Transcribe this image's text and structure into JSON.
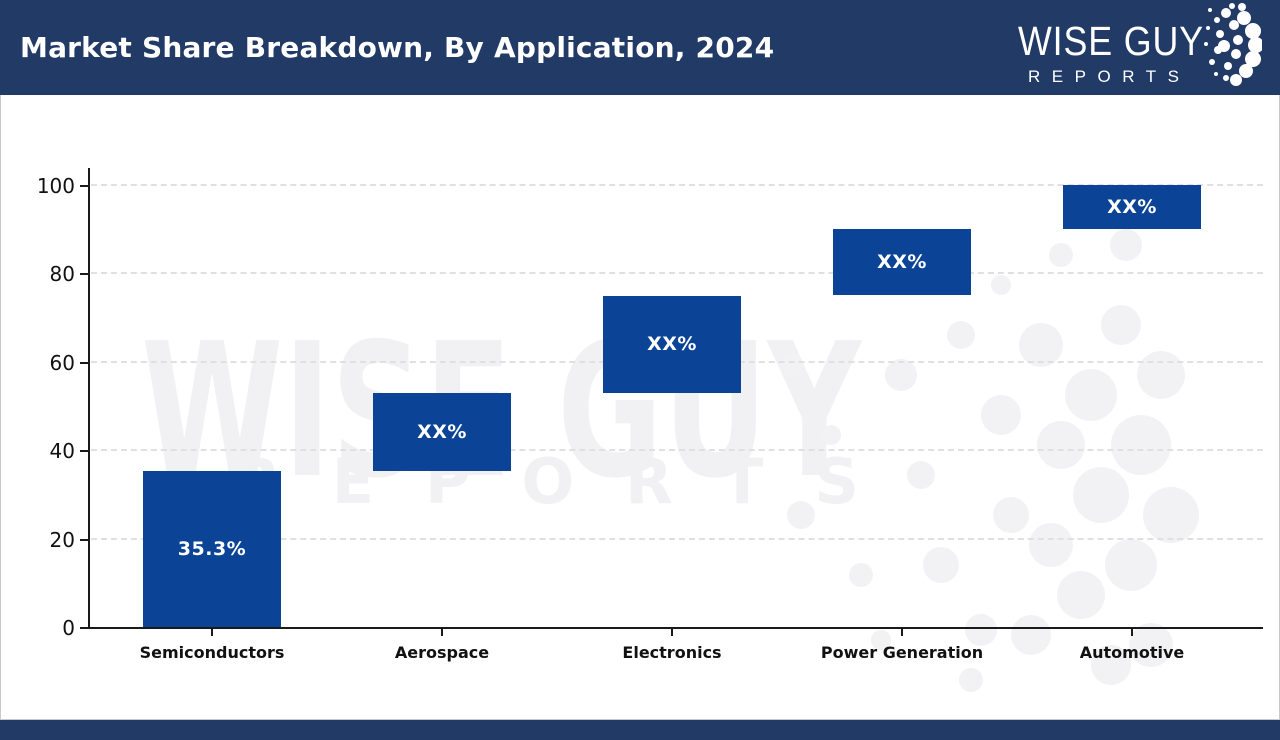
{
  "header": {
    "title": "Market Share Breakdown, By Application, 2024",
    "logo": {
      "line1": "WISE GUY",
      "line2": "REPORTS"
    }
  },
  "watermark": {
    "line1": "WISE GUY",
    "line2": "REPORTS"
  },
  "colors": {
    "header_bg": "#213a66",
    "bar": "#0b4396",
    "grid": "#e0e0e0",
    "axis": "#1a1a1a",
    "watermark": "#f1f1f3",
    "frame": "#c9c9c9",
    "title_text": "#ffffff"
  },
  "chart_data": {
    "type": "bar",
    "subtype": "waterfall-floating-bars",
    "title": "Market Share Breakdown, By Application, 2024",
    "categories": [
      "Semiconductors",
      "Aerospace",
      "Electronics",
      "Power Generation",
      "Automotive"
    ],
    "segments": [
      {
        "category": "Semiconductors",
        "start": 0,
        "end": 35.3,
        "label": "35.3%"
      },
      {
        "category": "Aerospace",
        "start": 35.3,
        "end": 53,
        "label": "XX%"
      },
      {
        "category": "Electronics",
        "start": 53,
        "end": 75,
        "label": "XX%"
      },
      {
        "category": "Power Generation",
        "start": 75,
        "end": 90,
        "label": "XX%"
      },
      {
        "category": "Automotive",
        "start": 90,
        "end": 100,
        "label": "XX%"
      }
    ],
    "y_ticks": [
      0,
      20,
      40,
      60,
      80,
      100
    ],
    "ylim": [
      0,
      100
    ],
    "xlabel": "",
    "ylabel": "",
    "grid": "horizontal-dashed",
    "legend": "none",
    "bar_color": "#0b4396"
  }
}
